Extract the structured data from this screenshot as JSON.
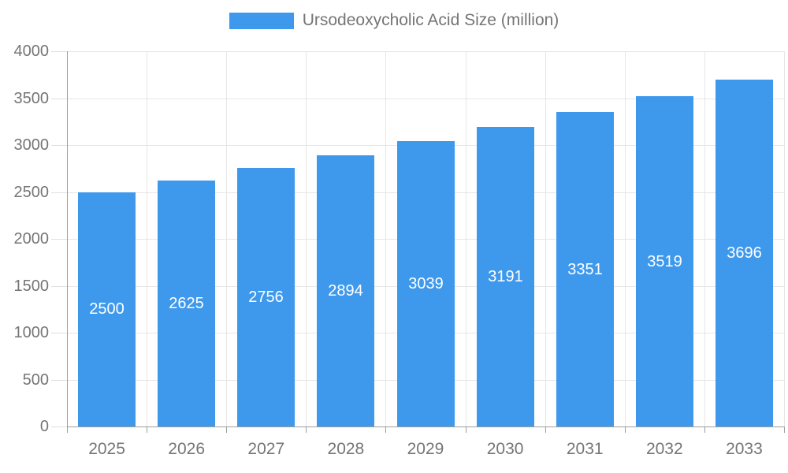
{
  "chart_data": {
    "type": "bar",
    "title": "Ursodeoxycholic Acid Size (million)",
    "series": [
      {
        "name": "Ursodeoxycholic Acid Size (million)",
        "values": [
          2500,
          2625,
          2756,
          2894,
          3039,
          3191,
          3351,
          3519,
          3696
        ]
      }
    ],
    "categories": [
      "2025",
      "2026",
      "2027",
      "2028",
      "2029",
      "2030",
      "2031",
      "2032",
      "2033"
    ],
    "bar_value_labels": [
      "2500",
      "2625",
      "2756",
      "2894",
      "3039",
      "3191",
      "3351",
      "3519",
      "3696"
    ],
    "xlabel": "",
    "ylabel": "",
    "ylim": [
      0,
      4000
    ],
    "ytick_interval": 500,
    "yticks": [
      0,
      500,
      1000,
      1500,
      2000,
      2500,
      3000,
      3500,
      4000
    ],
    "grid": true,
    "bar_labels_inside": true,
    "legend_position": "top-center",
    "colors": {
      "bar": "#3E99ED",
      "bar_label_text": "#ffffff",
      "axis_text": "#757575",
      "gridline": "#e6e6e6",
      "axis_line": "#9e9e9e",
      "y_tick": "#e0e0e0",
      "background": "#ffffff"
    }
  }
}
